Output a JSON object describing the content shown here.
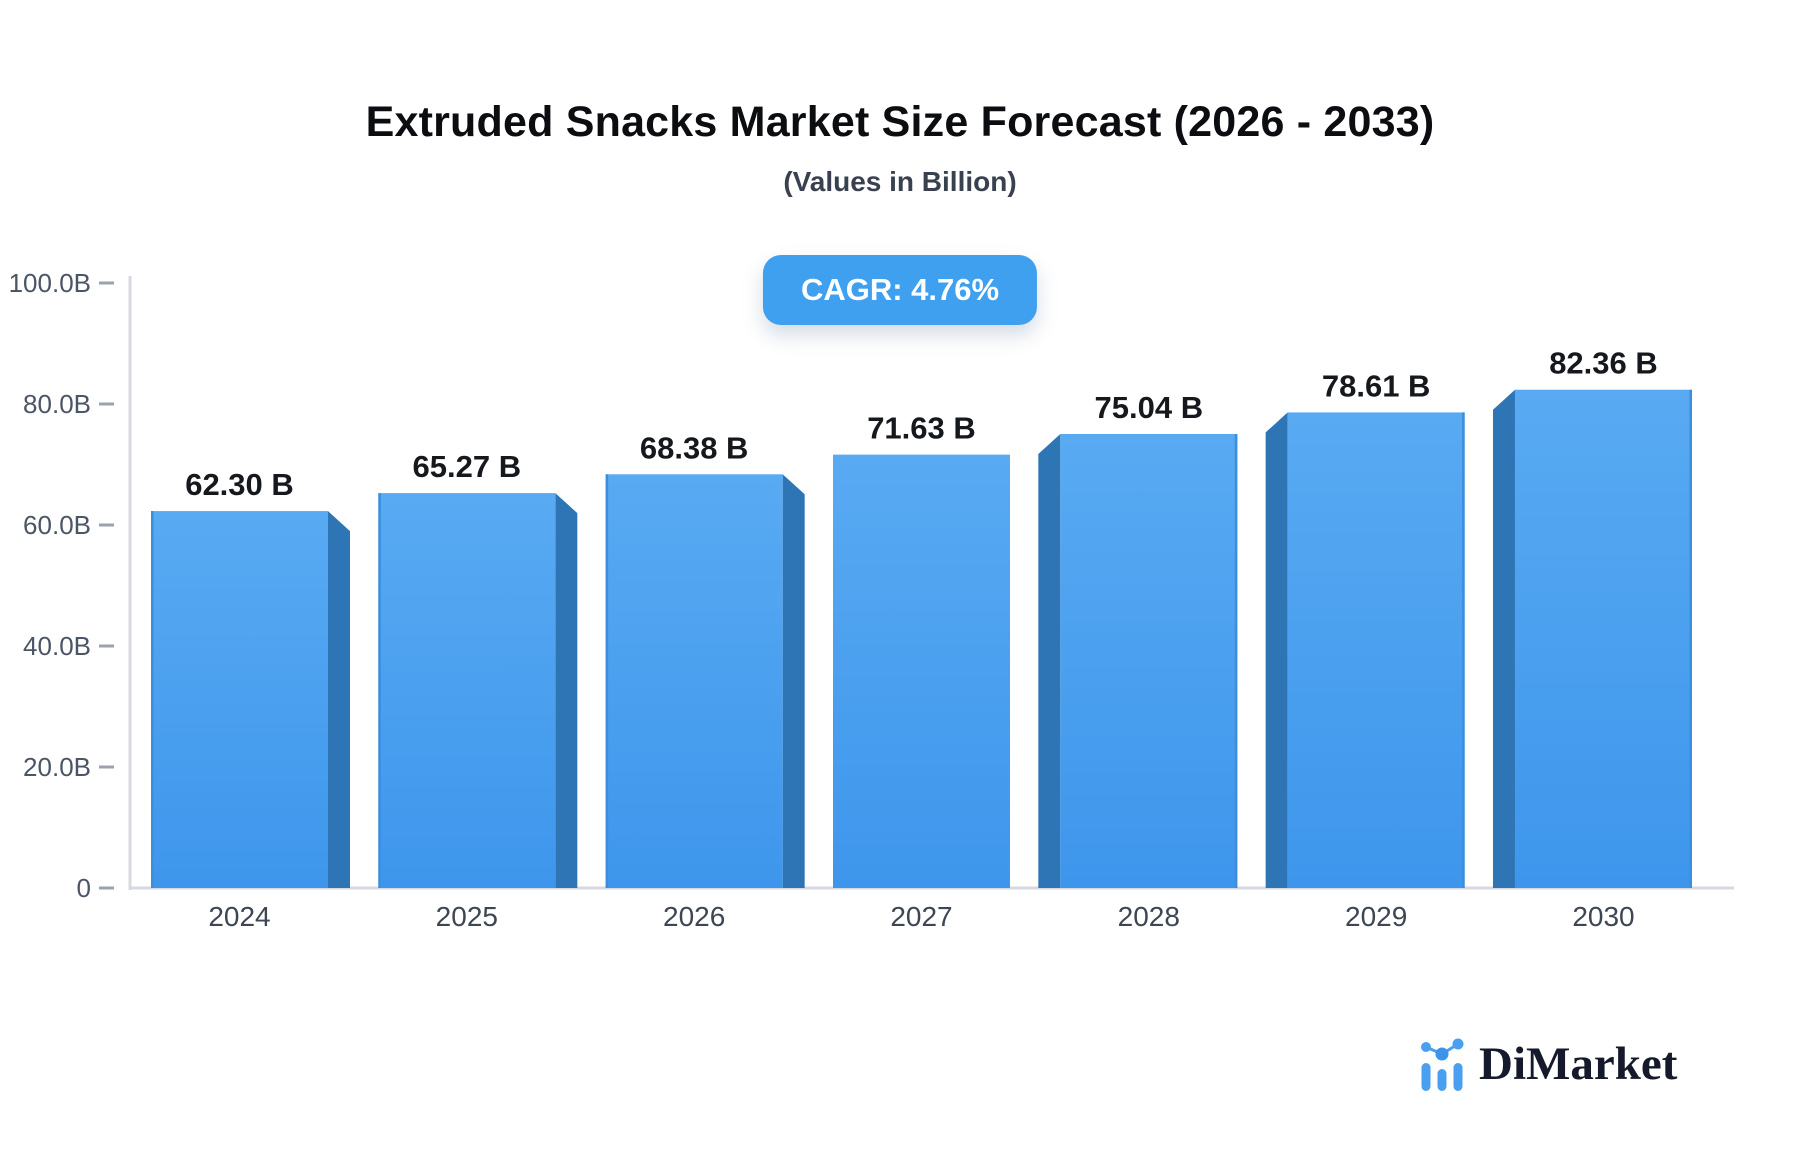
{
  "header": {
    "title": "Extruded Snacks Market Size Forecast (2026 - 2033)",
    "subtitle": "(Values in Billion)"
  },
  "badge": {
    "label": "CAGR: 4.76%",
    "bg_color": "#3fa0ef",
    "text_color": "#ffffff"
  },
  "chart_data": {
    "type": "bar",
    "title": "Extruded Snacks Market Size Forecast (2026 - 2033)",
    "subtitle": "(Values in Billion)",
    "categories": [
      "2024",
      "2025",
      "2026",
      "2027",
      "2028",
      "2029",
      "2030"
    ],
    "values": [
      62.3,
      65.27,
      68.38,
      71.63,
      75.04,
      78.61,
      82.36
    ],
    "value_labels": [
      "62.30 B",
      "65.27 B",
      "68.38 B",
      "71.63 B",
      "75.04 B",
      "78.61 B",
      "82.36 B"
    ],
    "unit": "B",
    "ylim": [
      0,
      100
    ],
    "yticks": [
      {
        "value": 0,
        "label": "0"
      },
      {
        "value": 20,
        "label": "20.0B"
      },
      {
        "value": 40,
        "label": "40.0B"
      },
      {
        "value": 60,
        "label": "60.0B"
      },
      {
        "value": 80,
        "label": "80.0B"
      },
      {
        "value": 100,
        "label": "100.0B"
      }
    ],
    "grid": false,
    "legend": null,
    "colors": {
      "bar_top": "#58aaf2",
      "bar_bottom": "#3e96ec",
      "bar_side": "#2d75b4",
      "bar_edge": "#3c8edd",
      "axis": "#d6d9e0",
      "tick": "#9ba2ae",
      "tick_label": "#4b5565",
      "category_label": "#3e4653",
      "value_label": "#15181c"
    }
  },
  "logo": {
    "icon": "bar-line-chart-icon",
    "icon_color": "#4aa0f0",
    "icon_accent": "#3e92e8",
    "text": "DiMarket",
    "text_color": "#141a2b"
  }
}
